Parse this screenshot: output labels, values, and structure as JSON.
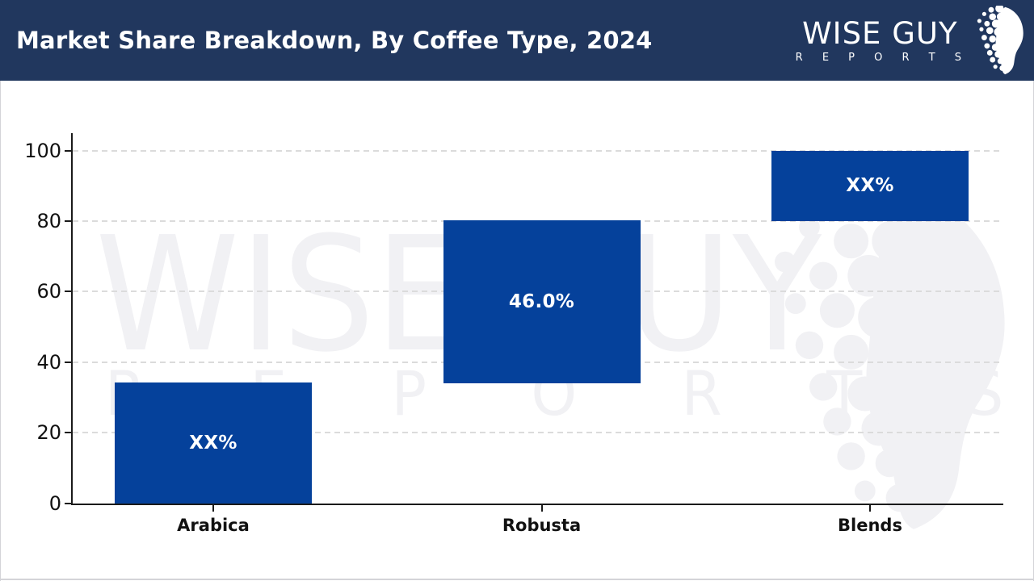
{
  "header": {
    "title": "Market Share Breakdown, By Coffee Type, 2024",
    "logo_wordmark": "WISE GUY",
    "logo_subtitle": "R E P O R T S"
  },
  "watermark": {
    "wordmark": "WISE GUY",
    "subtitle": "R E P O R T S"
  },
  "colors": {
    "header_bg": "#21375E",
    "bar": "#05419B",
    "bar_label": "#FFFFFF",
    "grid": "#DBDBDB",
    "axis": "#1A1A1A",
    "tick_text": "#111111",
    "watermark": "#F1F1F4"
  },
  "chart_data": {
    "type": "bar",
    "subtype": "stacked_waterfall_percent",
    "title": "Market Share Breakdown, By Coffee Type, 2024",
    "categories": [
      "Arabica",
      "Robusta",
      "Blends"
    ],
    "segments": [
      {
        "category": "Arabica",
        "start": 0,
        "end": 34.2,
        "label": "XX%"
      },
      {
        "category": "Robusta",
        "start": 34.2,
        "end": 80.2,
        "label": "46.0%"
      },
      {
        "category": "Blends",
        "start": 80.2,
        "end": 100,
        "label": "XX%"
      }
    ],
    "xlabel": "",
    "ylabel": "",
    "yticks": [
      0,
      20,
      40,
      60,
      80,
      100
    ],
    "ylim": [
      0,
      105
    ],
    "grid": "horizontal-dashed",
    "legend": "none",
    "bar_color": "#05419B"
  }
}
